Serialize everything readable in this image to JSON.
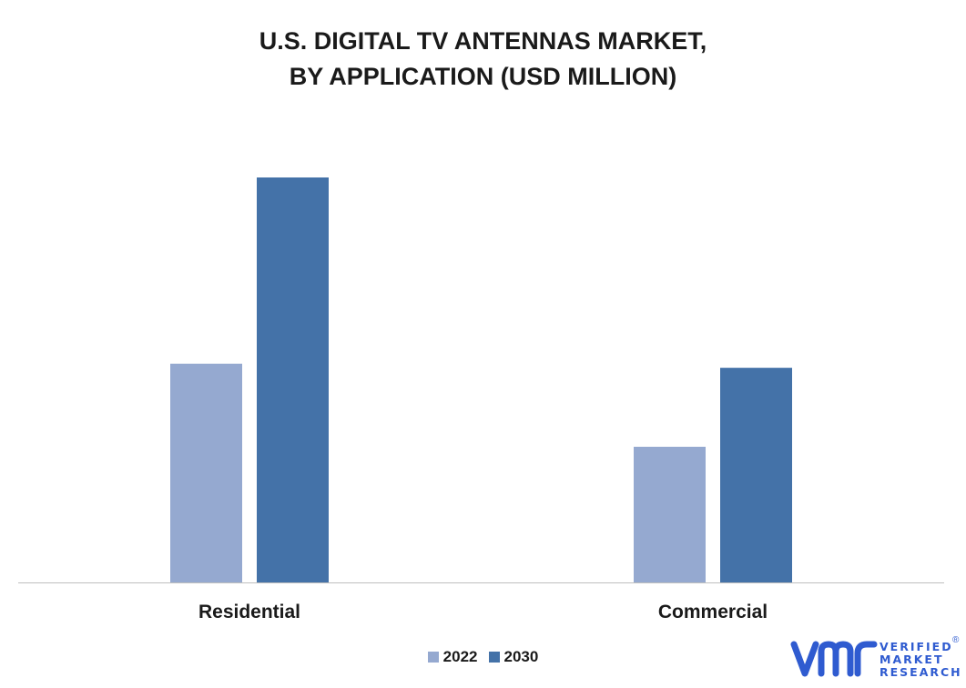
{
  "chart_data": {
    "type": "bar",
    "title_lines": [
      "U.S. DIGITAL TV ANTENNAS MARKET,",
      "BY APPLICATION (USD MILLION)"
    ],
    "categories": [
      "Residential",
      "Commercial"
    ],
    "series": [
      {
        "name": "2022",
        "values": [
          54,
          33.5
        ],
        "color": "#95a9d0"
      },
      {
        "name": "2030",
        "values": [
          100,
          53
        ],
        "color": "#4472a8"
      }
    ],
    "ylim": [
      0,
      100
    ],
    "grid": false,
    "legend_placement": "bottom"
  },
  "logo": {
    "name": "vmr-logo",
    "lines": [
      "VERIFIED",
      "MARKET",
      "RESEARCH"
    ],
    "registered": "®",
    "color": "#2f5bd0"
  }
}
